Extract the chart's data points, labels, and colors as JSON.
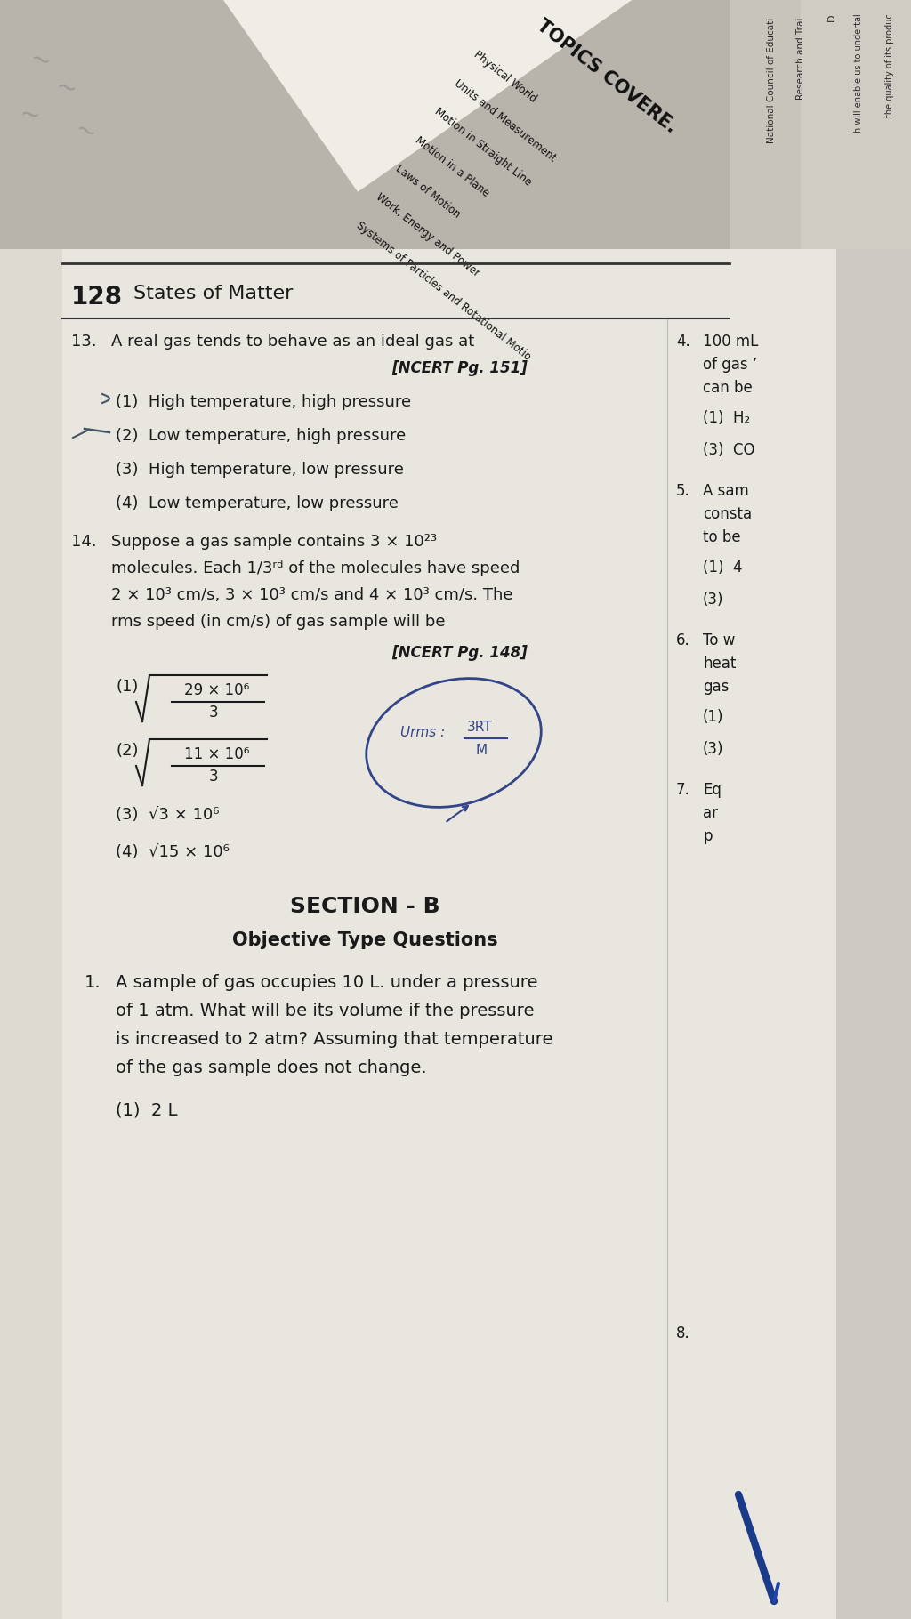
{
  "bg_color": "#cccac2",
  "page_bg": "#e8e6df",
  "text_color": "#1a1a1a",
  "header_num": "128",
  "header_title": "States of Matter",
  "q13_text": "A real gas tends to behave as an ideal gas at",
  "q13_ref": "[NCERT Pg. 151]",
  "q13_opts": [
    "(1)  High temperature, high pressure",
    "(2)  Low temperature, high pressure",
    "(3)  High temperature, low pressure",
    "(4)  Low temperature, low pressure"
  ],
  "q14_lines": [
    "Suppose a gas sample contains 3 × 10²³",
    "molecules. Each 1/3ʳᵈ of the molecules have speed",
    "2 × 10³ cm/s, 3 × 10³ cm/s and 4 × 10³ cm/s. The",
    "rms speed (in cm/s) of gas sample will be"
  ],
  "q14_ref": "[NCERT Pg. 148]",
  "q14_opt3": "(3)  √3 × 10⁶",
  "q14_opt4": "(4)  √15 × 10⁶",
  "section_label": "SECTION - B",
  "section_sub": "Objective Type Questions",
  "q1_lines": [
    "A sample of gas occupies 10 L. under a pressure",
    "of 1 atm. What will be its volume if the pressure",
    "is increased to 2 atm? Assuming that temperature",
    "of the gas sample does not change."
  ],
  "q1_opt1": "(1)  2 L",
  "topics": [
    "Physical World",
    "Units and Measurement",
    "Motion in Straight Line",
    "Motion in a Plane",
    "Laws of Motion",
    "Work, Energy and Power",
    "Systems of Particles and Rotational Motio"
  ],
  "topics_title": "TOPICS COVERE.",
  "right_col_items": [
    {
      "label": "4.",
      "lines": [
        "100 mL",
        "of gas ’",
        "can be"
      ],
      "opts": [
        "(1)  H₂",
        "(3)  CO"
      ]
    },
    {
      "label": "5.",
      "lines": [
        "A sam",
        "consta",
        "to be"
      ],
      "opts": [
        "(1)  4",
        "(3)"
      ]
    },
    {
      "label": "6.",
      "lines": [
        "To w",
        "heat",
        "gas"
      ],
      "opts": [
        "(1)",
        "(3)"
      ]
    },
    {
      "label": "7.",
      "lines": [
        "Eq",
        "ar",
        "p"
      ],
      "opts": []
    },
    {
      "label": "8.",
      "lines": [],
      "opts": []
    }
  ]
}
